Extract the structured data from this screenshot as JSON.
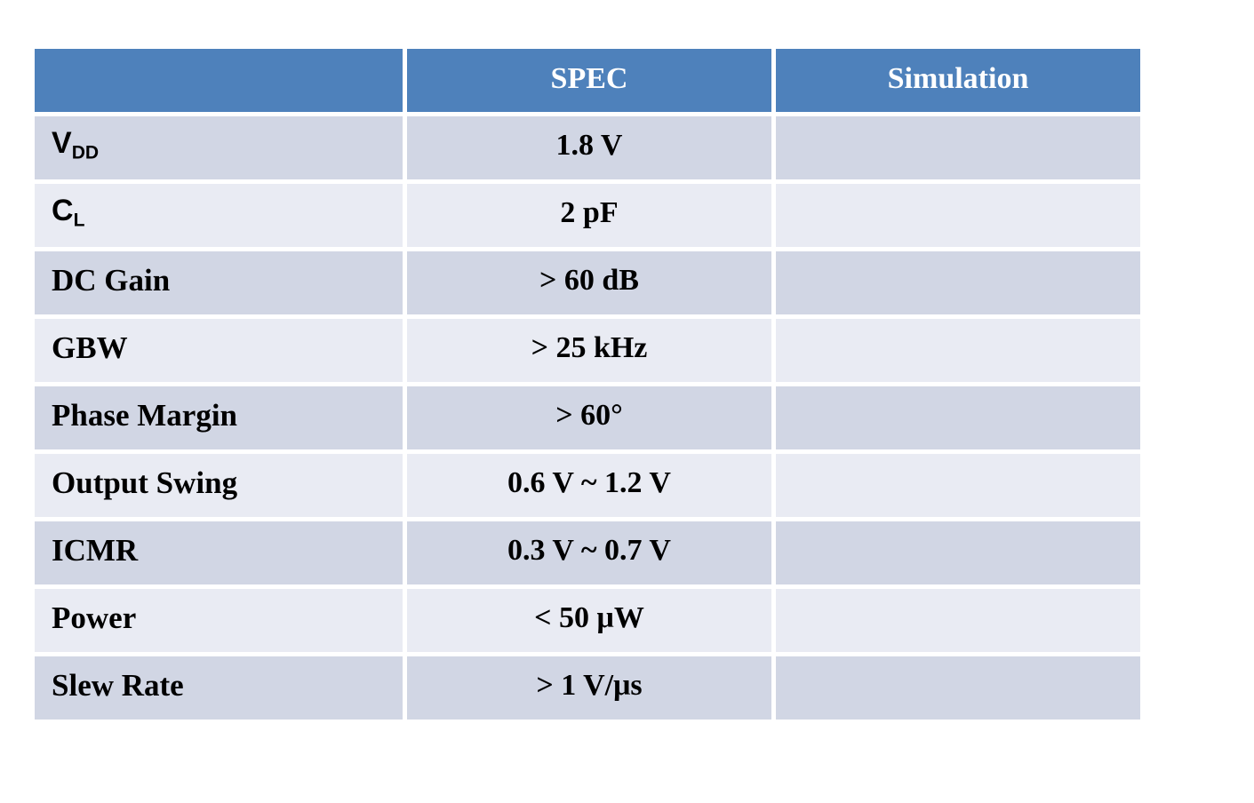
{
  "theme": {
    "page-bg": "#ffffff",
    "header-bg": "#4E81BB",
    "header-text": "#ffffff",
    "band-dark": "#D1D6E4",
    "band-light": "#E9EBF3",
    "cell-text": "#000000",
    "gutter": "#ffffff"
  },
  "table": {
    "columns": [
      {
        "label": ""
      },
      {
        "label": "SPEC"
      },
      {
        "label": "Simulation"
      }
    ],
    "rows": [
      {
        "param": "V",
        "param_sub": "DD",
        "spec": "1.8 V",
        "simulation": ""
      },
      {
        "param": "C",
        "param_sub": "L",
        "spec": "2 pF",
        "simulation": ""
      },
      {
        "param": "DC Gain",
        "spec": "> 60 dB",
        "simulation": ""
      },
      {
        "param": "GBW",
        "spec": "> 25 kHz",
        "simulation": ""
      },
      {
        "param": "Phase Margin",
        "spec": "> 60°",
        "simulation": ""
      },
      {
        "param": "Output Swing",
        "spec": "0.6 V ~ 1.2 V",
        "simulation": ""
      },
      {
        "param": "ICMR",
        "spec": "0.3 V ~ 0.7 V",
        "simulation": ""
      },
      {
        "param": "Power",
        "spec": "< 50 μW",
        "simulation": ""
      },
      {
        "param": "Slew Rate",
        "spec": "> 1 V/μs",
        "simulation": ""
      }
    ]
  }
}
